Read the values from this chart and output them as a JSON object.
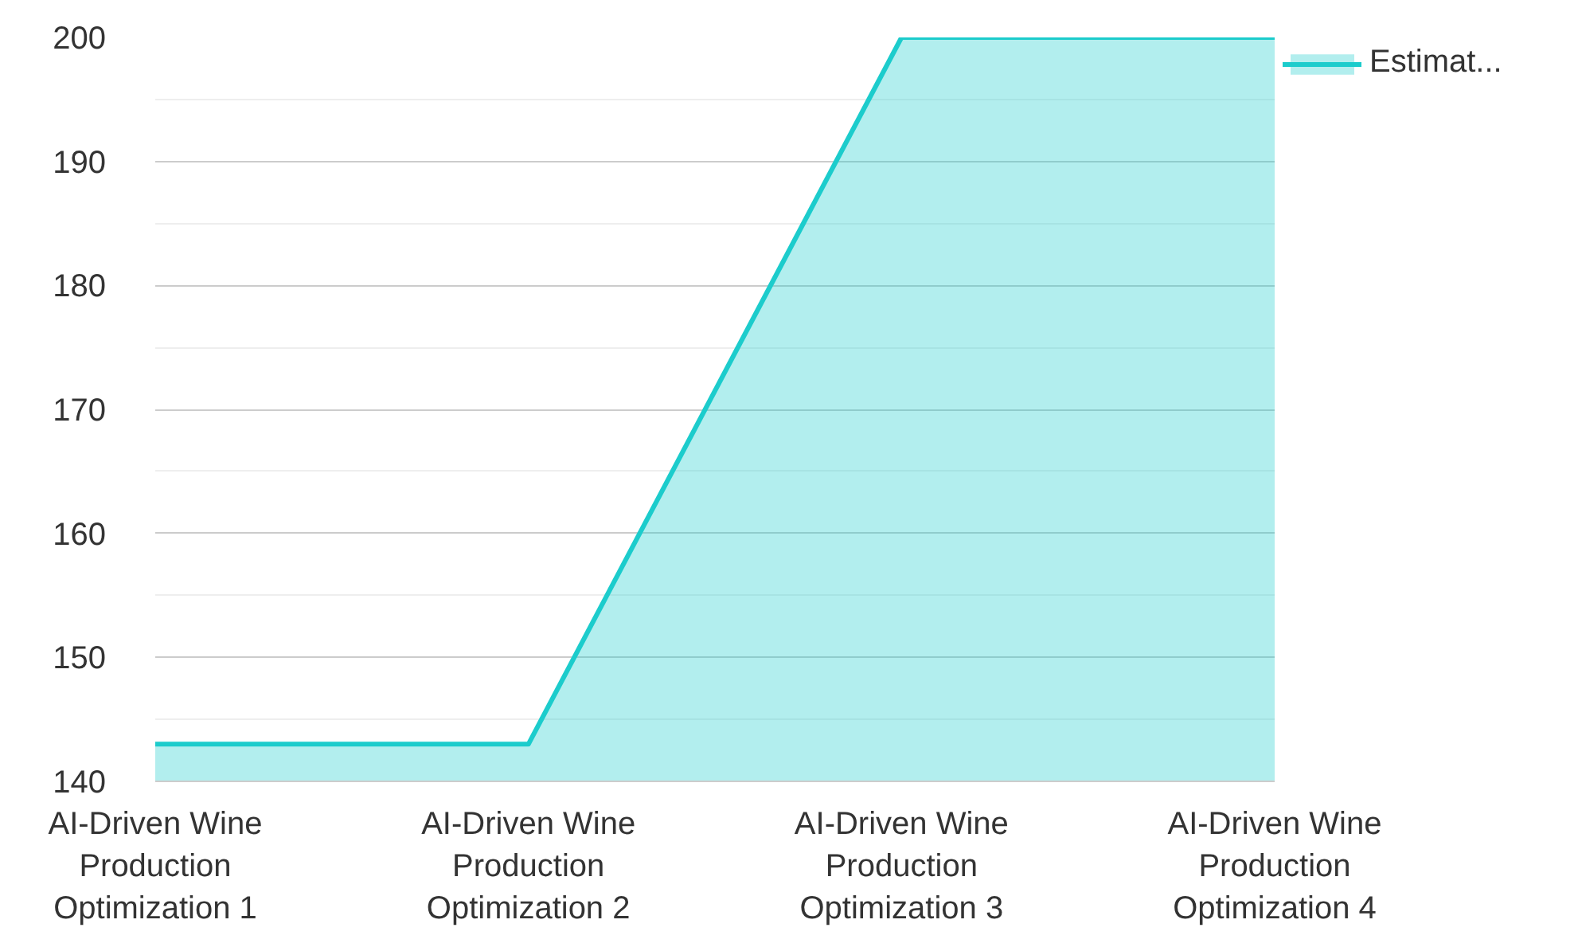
{
  "chart_data": {
    "type": "area",
    "categories": [
      "AI-Driven Wine Production Optimization 1",
      "AI-Driven Wine Production Optimization 2",
      "AI-Driven Wine Production Optimization 3",
      "AI-Driven Wine Production Optimization 4"
    ],
    "series": [
      {
        "name": "Estimat...",
        "color": "#1ccccc",
        "values": [
          143,
          143,
          200,
          200
        ]
      }
    ],
    "ylim": [
      140,
      200
    ],
    "yticks": [
      140,
      150,
      160,
      170,
      180,
      190,
      200
    ],
    "grid": "y",
    "legend": "top right"
  }
}
